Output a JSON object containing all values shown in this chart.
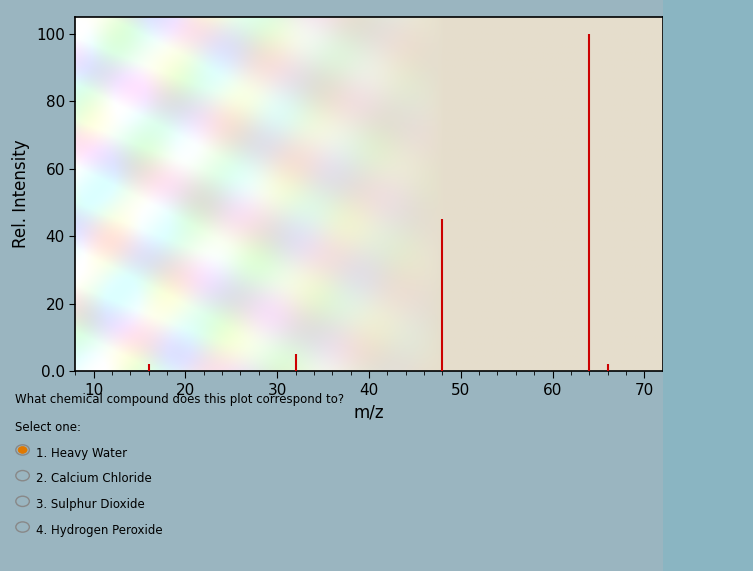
{
  "mz_values": [
    16,
    32,
    48,
    64,
    66
  ],
  "intensities": [
    2,
    5,
    45,
    100,
    2
  ],
  "bar_color": "#cc0000",
  "xlabel": "m/z",
  "ylabel": "Rel. Intensity",
  "xlim": [
    8,
    72
  ],
  "ylim": [
    0,
    105
  ],
  "xticks": [
    10,
    20,
    30,
    40,
    50,
    60,
    70
  ],
  "yticks": [
    0.0,
    20,
    40,
    60,
    80,
    100
  ],
  "ytick_labels": [
    "0.0",
    "20",
    "40",
    "60",
    "80",
    "100"
  ],
  "question_text": "What chemical compound does this plot correspond to?",
  "select_text": "Select one:",
  "options": [
    "1. Heavy Water",
    "2. Calcium Chloride",
    "3. Sulphur Dioxide",
    "4. Hydrogen Peroxide"
  ],
  "figure_bg": "#9ab5c0",
  "right_strip_color": "#8fb0bc",
  "plot_bg_base": [
    0.9,
    0.87,
    0.8
  ]
}
